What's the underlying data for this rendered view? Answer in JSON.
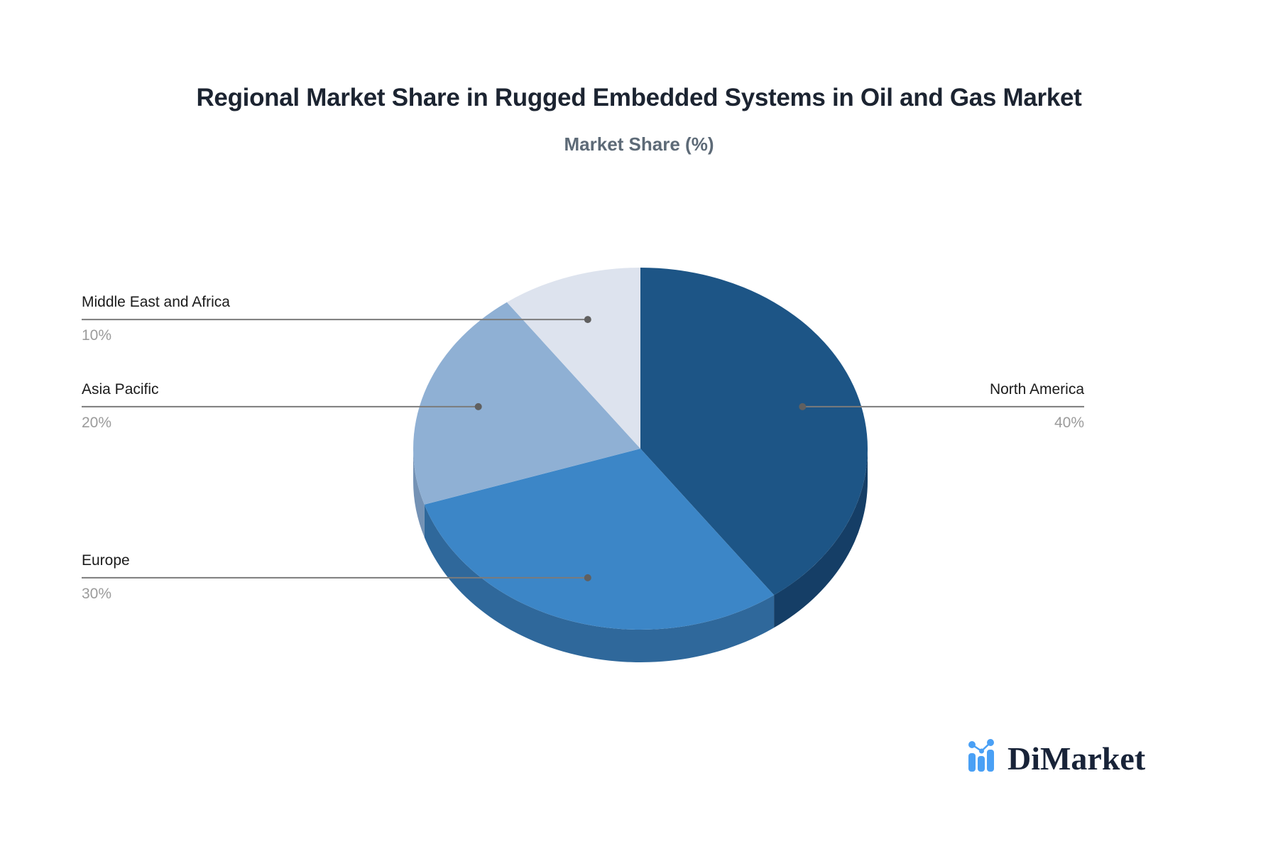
{
  "title": "Regional Market Share in Rugged Embedded Systems in Oil and Gas Market",
  "subtitle": "Market Share (%)",
  "chart_data": {
    "type": "pie",
    "style": "3d",
    "title": "Regional Market Share in Rugged Embedded Systems in Oil and Gas Market",
    "subtitle": "Market Share (%)",
    "unit": "%",
    "direction": "clockwise",
    "start_angle_deg": 0,
    "legend_position": "callout-leader-lines",
    "slices": [
      {
        "label": "North America",
        "value": 40,
        "display": "40%",
        "color": "#1d5586",
        "side_color": "#153e66"
      },
      {
        "label": "Europe",
        "value": 30,
        "display": "30%",
        "color": "#3c86c7",
        "side_color": "#2f689b"
      },
      {
        "label": "Asia Pacific",
        "value": 20,
        "display": "20%",
        "color": "#8fb0d4",
        "side_color": "#7492b5"
      },
      {
        "label": "Middle East and Africa",
        "value": 10,
        "display": "10%",
        "color": "#dde3ee",
        "side_color": "#c2cede"
      }
    ]
  },
  "callouts": {
    "na": {
      "label": "North America",
      "value": "40%"
    },
    "eu": {
      "label": "Europe",
      "value": "30%"
    },
    "ap": {
      "label": "Asia Pacific",
      "value": "20%"
    },
    "mea": {
      "label": "Middle East and Africa",
      "value": "10%"
    }
  },
  "style_tokens": {
    "leader_line_color": "#7b7b7b",
    "leader_dot_color": "#606060",
    "title_color": "#1c2431",
    "subtitle_color": "#5d6a77",
    "label_color": "#1b1b1b",
    "value_color": "#9b9b9b",
    "logo_blue": "#4aa0f5",
    "logo_navy": "#182338"
  },
  "branding": {
    "name": "DiMarket"
  }
}
